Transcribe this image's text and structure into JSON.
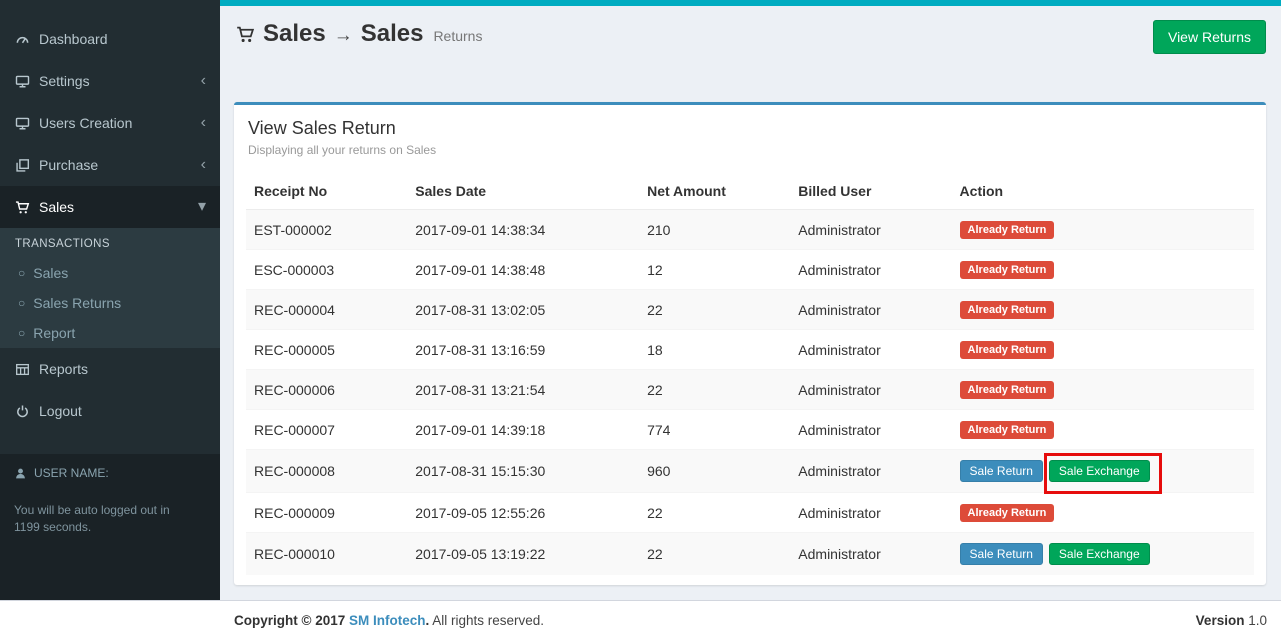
{
  "colors": {
    "top_strip": "#00acc1",
    "sidebar_bg": "#222d32",
    "sidebar_active_bg": "#1a2226",
    "submenu_bg": "#2c3b41",
    "panel_accent": "#3c8dbc",
    "success": "#00a65a",
    "danger": "#dd4b39",
    "primary": "#3c8dbc",
    "annotation_box": "#e60c0c"
  },
  "icons": {
    "chevron_left": "‹",
    "chevron_down": "▾",
    "submenu_circle": "○",
    "header_arrow": "→"
  },
  "sidebar": {
    "items": [
      {
        "label": "Dashboard"
      },
      {
        "label": "Settings"
      },
      {
        "label": "Users Creation"
      },
      {
        "label": "Purchase"
      },
      {
        "label": "Sales"
      },
      {
        "label": "Reports"
      },
      {
        "label": "Logout"
      }
    ],
    "submenu_header": "TRANSACTIONS",
    "submenu": [
      "Sales",
      "Sales Returns",
      "Report"
    ],
    "user_label": "USER NAME:",
    "logout_notice": "You will be auto logged out in 1199 seconds."
  },
  "header": {
    "title_primary": "Sales",
    "title_secondary": "Sales",
    "title_small": "Returns",
    "view_returns_button": "View Returns"
  },
  "panel": {
    "title": "View Sales Return",
    "subtitle": "Displaying all your returns on Sales",
    "badges": {
      "already_return": "Already Return",
      "sale_return": "Sale Return",
      "sale_exchange": "Sale Exchange"
    },
    "table": {
      "columns": [
        "Receipt No",
        "Sales Date",
        "Net Amount",
        "Billed User",
        "Action"
      ],
      "rows": [
        {
          "receipt": "EST-000002",
          "date": "2017-09-01 14:38:34",
          "amount": "210",
          "user": "Administrator",
          "actions": [
            {
              "type": "already_return"
            }
          ]
        },
        {
          "receipt": "ESC-000003",
          "date": "2017-09-01 14:38:48",
          "amount": "12",
          "user": "Administrator",
          "actions": [
            {
              "type": "already_return"
            }
          ]
        },
        {
          "receipt": "REC-000004",
          "date": "2017-08-31 13:02:05",
          "amount": "22",
          "user": "Administrator",
          "actions": [
            {
              "type": "already_return"
            }
          ]
        },
        {
          "receipt": "REC-000005",
          "date": "2017-08-31 13:16:59",
          "amount": "18",
          "user": "Administrator",
          "actions": [
            {
              "type": "already_return"
            }
          ]
        },
        {
          "receipt": "REC-000006",
          "date": "2017-08-31 13:21:54",
          "amount": "22",
          "user": "Administrator",
          "actions": [
            {
              "type": "already_return"
            }
          ]
        },
        {
          "receipt": "REC-000007",
          "date": "2017-09-01 14:39:18",
          "amount": "774",
          "user": "Administrator",
          "actions": [
            {
              "type": "already_return"
            }
          ]
        },
        {
          "receipt": "REC-000008",
          "date": "2017-08-31 15:15:30",
          "amount": "960",
          "user": "Administrator",
          "actions": [
            {
              "type": "sale_return"
            },
            {
              "type": "sale_exchange",
              "highlight": true
            }
          ]
        },
        {
          "receipt": "REC-000009",
          "date": "2017-09-05 12:55:26",
          "amount": "22",
          "user": "Administrator",
          "actions": [
            {
              "type": "already_return"
            }
          ]
        },
        {
          "receipt": "REC-000010",
          "date": "2017-09-05 13:19:22",
          "amount": "22",
          "user": "Administrator",
          "actions": [
            {
              "type": "sale_return"
            },
            {
              "type": "sale_exchange"
            }
          ]
        }
      ]
    }
  },
  "footer": {
    "bold_prefix": "Copyright © 2017 ",
    "company_link": "SM Infotech",
    "bold_suffix": ".",
    "rest": " All rights reserved.",
    "version_label": "Version",
    "version_value": "1.0"
  }
}
